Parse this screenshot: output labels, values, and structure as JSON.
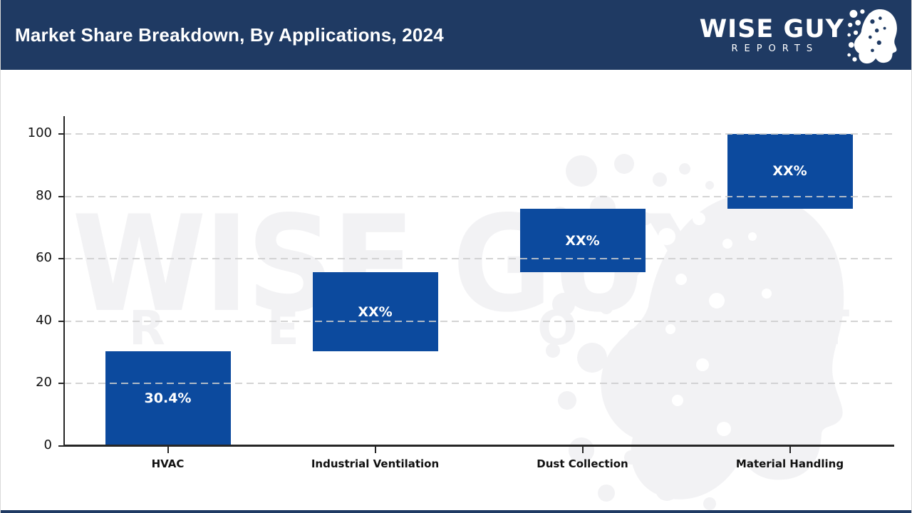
{
  "header": {
    "title": "Market Share Breakdown, By Applications, 2024",
    "bg_color": "#1f3a63",
    "logo": {
      "line1": "WISE GUY",
      "line2": "REPORTS"
    }
  },
  "watermark": {
    "line1": "WISE GUY",
    "line2": "REPORTS"
  },
  "footer_color": "#1f3a63",
  "chart_data": {
    "type": "bar",
    "subtype": "waterfall",
    "title": "Market Share Breakdown, By Applications, 2024",
    "categories": [
      "HVAC",
      "Industrial Ventilation",
      "Dust Collection",
      "Material Handling"
    ],
    "segments": [
      {
        "category": "HVAC",
        "start": 0,
        "end": 30.4,
        "label": "30.4%"
      },
      {
        "category": "Industrial Ventilation",
        "start": 30.4,
        "end": 55.6,
        "label": "XX%"
      },
      {
        "category": "Dust Collection",
        "start": 55.6,
        "end": 76.1,
        "label": "XX%"
      },
      {
        "category": "Material Handling",
        "start": 76.1,
        "end": 100,
        "label": "XX%"
      }
    ],
    "y_ticks": [
      0,
      20,
      40,
      60,
      80,
      100
    ],
    "ylim": [
      0,
      100
    ],
    "xlabel": "",
    "ylabel": "",
    "bar_color": "#0c4a9e",
    "grid": true,
    "grid_style": "dashed",
    "legend": false
  }
}
